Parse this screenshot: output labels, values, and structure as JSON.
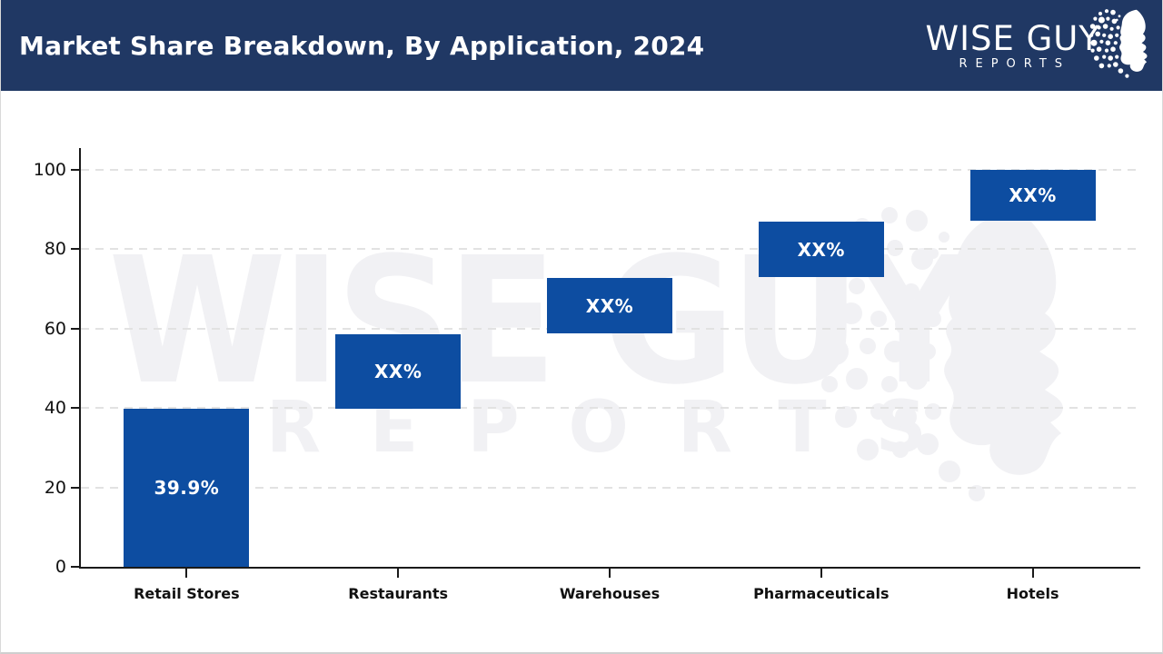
{
  "header": {
    "title": "Market Share Breakdown, By Application, 2024",
    "logo": {
      "line1": "WISE GUY",
      "line2": "REPORTS"
    }
  },
  "watermark": {
    "line1": "WISE GUY",
    "line2": "REPORTS"
  },
  "colors": {
    "header_bg": "#203864",
    "bar": "#0d4da1",
    "bar_label": "#ffffff",
    "grid": "#e2e2e2",
    "axis": "#1a1a1a",
    "watermark": "#f1f1f4",
    "title_text": "#ffffff"
  },
  "chart_data": {
    "type": "bar",
    "subtype": "floating-waterfall",
    "title": "Market Share Breakdown, By Application, 2024",
    "categories": [
      "Retail Stores",
      "Restaurants",
      "Warehouses",
      "Pharmaceuticals",
      "Hotels"
    ],
    "segments": [
      {
        "category": "Retail Stores",
        "start": 0,
        "end": 39.9,
        "label": "39.9%"
      },
      {
        "category": "Restaurants",
        "start": 39.9,
        "end": 58.5,
        "label": "XX%"
      },
      {
        "category": "Warehouses",
        "start": 58.7,
        "end": 72.8,
        "label": "XX%"
      },
      {
        "category": "Pharmaceuticals",
        "start": 73.0,
        "end": 86.9,
        "label": "XX%"
      },
      {
        "category": "Hotels",
        "start": 87.1,
        "end": 100,
        "label": "XX%"
      }
    ],
    "yticks": [
      0,
      20,
      40,
      60,
      80,
      100
    ],
    "ylim": [
      0,
      105.5
    ],
    "xlabel": "",
    "ylabel": "",
    "grid": "horizontal-dashed",
    "legend": "none"
  }
}
